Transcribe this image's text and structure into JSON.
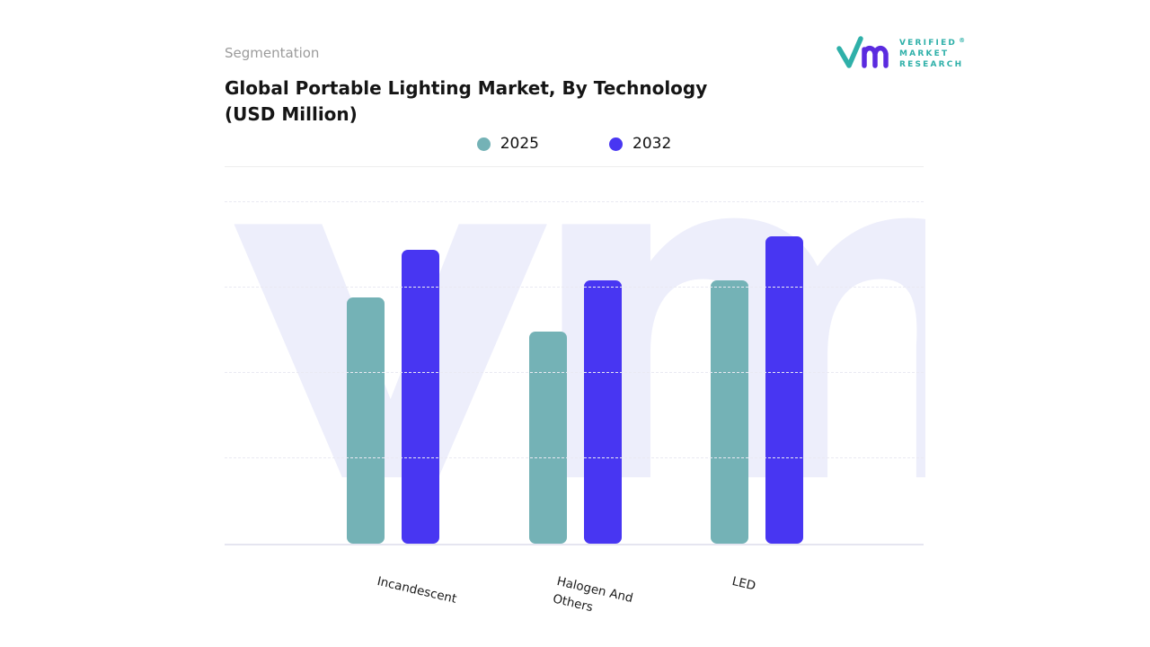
{
  "page": {
    "segmentation_label": "Segmentation"
  },
  "header": {
    "title_line1": "Global Portable Lighting Market, By Technology",
    "title_line2": "(USD Million)"
  },
  "legend": [
    {
      "label": "2025",
      "color": "#74b2b6"
    },
    {
      "label": "2032",
      "color": "#4836f2"
    }
  ],
  "logo": {
    "line1": "VERIFIED",
    "line2": "MARKET",
    "line3": "RESEARCH",
    "registered": "®",
    "teal": "#2fb0a9",
    "purple": "#5b2bdf"
  },
  "watermark": "vm",
  "chart_data": {
    "type": "bar",
    "title": "Global Portable Lighting Market, By Technology (USD Million)",
    "categories": [
      "Incandescent",
      "Halogen And Others",
      "LED"
    ],
    "series": [
      {
        "name": "2025",
        "color": "#74b2b6",
        "values": [
          72,
          62,
          77
        ]
      },
      {
        "name": "2032",
        "color": "#4836f2",
        "values": [
          86,
          77,
          90
        ]
      }
    ],
    "xlabel": "",
    "ylabel": "",
    "ylim": [
      0,
      100
    ],
    "grid": "horizontal-dashed",
    "legend_position": "top-center",
    "bar_corner_radius_px": 7
  }
}
